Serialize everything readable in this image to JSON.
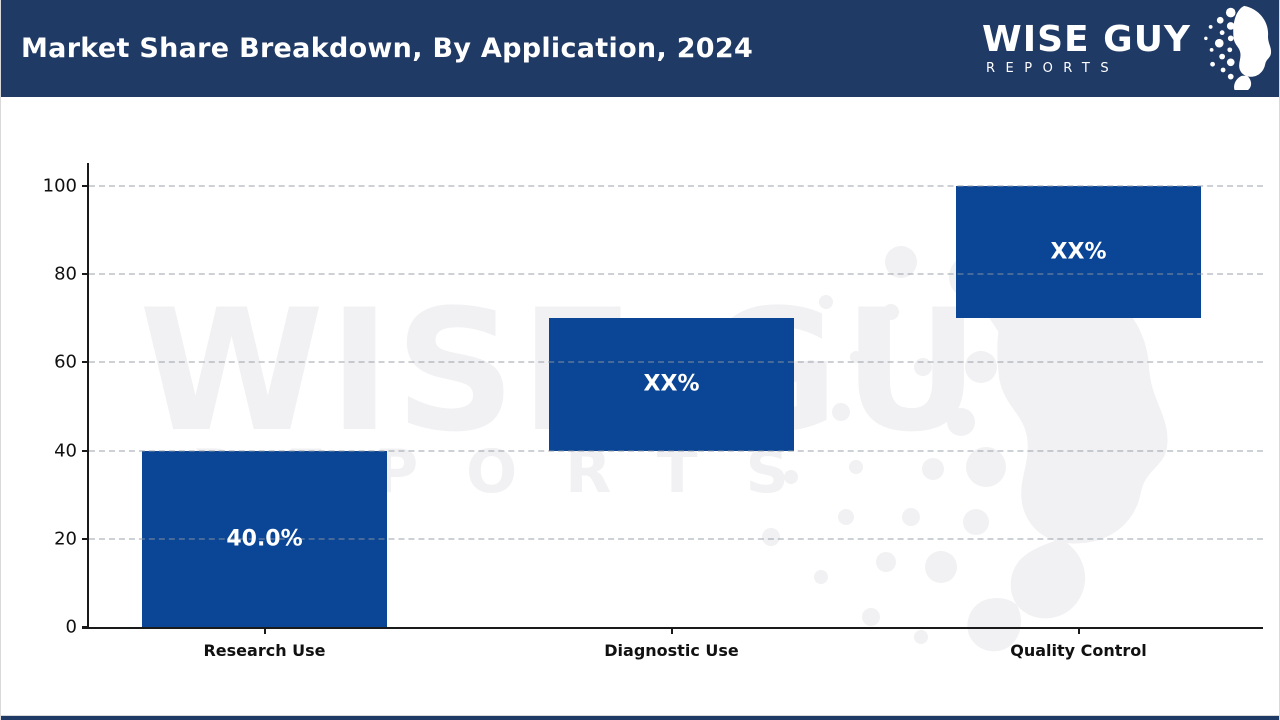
{
  "header": {
    "title": "Market Share Breakdown, By Application, 2024",
    "logo": {
      "line1": "WISE GUY",
      "line2": "REPORTS",
      "icon": "dot-face-profile"
    }
  },
  "watermark": {
    "line1": "WISE GUY",
    "line2": "REPORTS"
  },
  "chart_data": {
    "type": "bar",
    "subtype": "waterfall",
    "title": "Market Share Breakdown, By Application, 2024",
    "categories": [
      "Research Use",
      "Diagnostic Use",
      "Quality Control"
    ],
    "segments": [
      {
        "category": "Research Use",
        "start": 0,
        "end": 40,
        "label": "40.0%"
      },
      {
        "category": "Diagnostic Use",
        "start": 40,
        "end": 70,
        "label": "XX%"
      },
      {
        "category": "Quality Control",
        "start": 70,
        "end": 100,
        "label": "XX%"
      }
    ],
    "ylim": [
      0,
      100
    ],
    "yticks": [
      0,
      20,
      40,
      60,
      80,
      100
    ],
    "grid": "horizontal-dashed-over-bars",
    "legend": "none",
    "bar_color": "#0a4596",
    "bar_label_color": "#ffffff",
    "axis_color": "#1a1a1a",
    "header_color": "#203a66"
  },
  "colors": {
    "header_navy": "#203a66",
    "bar_blue": "#0a4596",
    "watermark_gray": "#f1f1f3",
    "gridline_gray": "#9196a0"
  }
}
